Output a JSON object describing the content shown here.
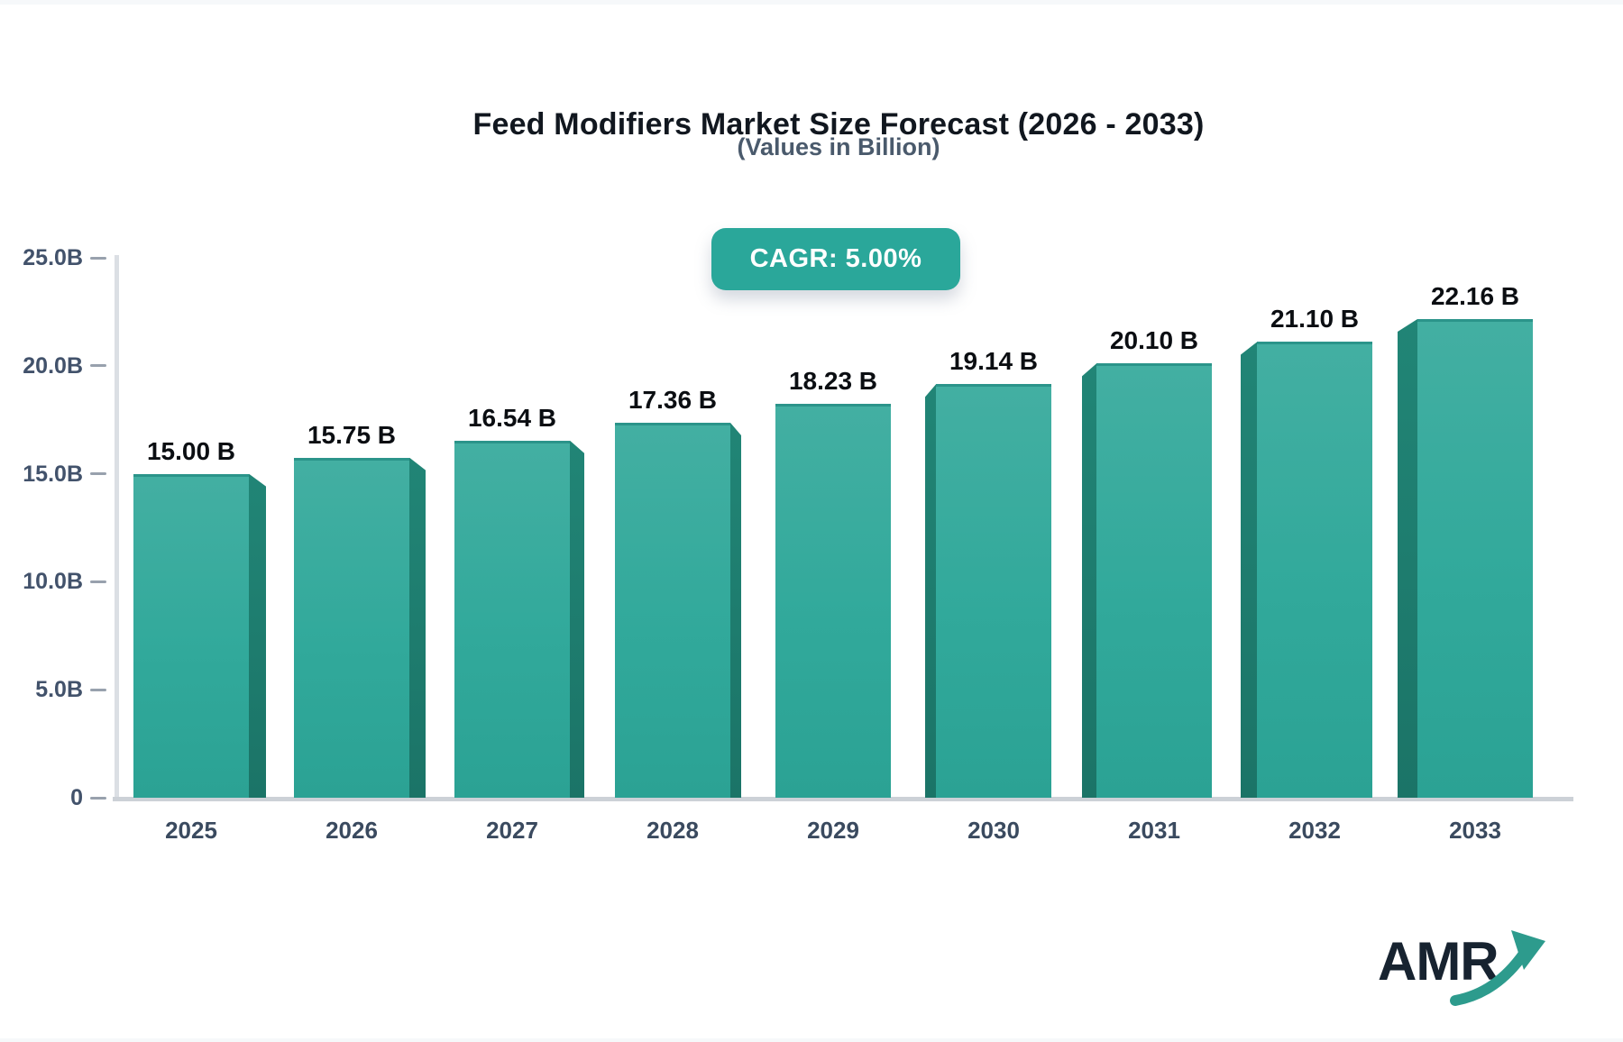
{
  "header": {
    "title": "Feed Modifiers Market Size Forecast (2026 - 2033)",
    "subtitle": "(Values in Billion)"
  },
  "badge": {
    "label": "CAGR: 5.00%",
    "bg": "#2aa79a"
  },
  "chart_data": {
    "type": "bar",
    "title": "Feed Modifiers Market Size Forecast (2026 - 2033)",
    "subtitle": "(Values in Billion)",
    "annotation": "CAGR: 5.00%",
    "categories": [
      "2025",
      "2026",
      "2027",
      "2028",
      "2029",
      "2030",
      "2031",
      "2032",
      "2033"
    ],
    "values": [
      15.0,
      15.75,
      16.54,
      17.36,
      18.23,
      19.14,
      20.1,
      21.1,
      22.16
    ],
    "value_labels": [
      "15.00 B",
      "15.75 B",
      "16.54 B",
      "17.36 B",
      "18.23 B",
      "19.14 B",
      "20.10 B",
      "21.10 B",
      "22.16 B"
    ],
    "ylabel": "",
    "xlabel": "",
    "ylim": [
      0,
      25
    ],
    "y_ticks": [
      {
        "label": "25.0B",
        "value": 25
      },
      {
        "label": "20.0B",
        "value": 20
      },
      {
        "label": "15.0B",
        "value": 15
      },
      {
        "label": "10.0B",
        "value": 10
      },
      {
        "label": "5.0B",
        "value": 5
      },
      {
        "label": "0",
        "value": 0
      }
    ],
    "grid": false,
    "legend": "none",
    "bar_color": "#31a99b",
    "bar_side_color": "#1b7467",
    "unit": "B"
  },
  "logo": {
    "text": "AMR",
    "arrow_color": "#2d9b8d"
  },
  "colors": {
    "accent": "#2aa79a",
    "axis_line": "#ccd1d7",
    "axis_label": "#42526b",
    "title": "#11171f",
    "subtitle": "#4a5a6c"
  }
}
